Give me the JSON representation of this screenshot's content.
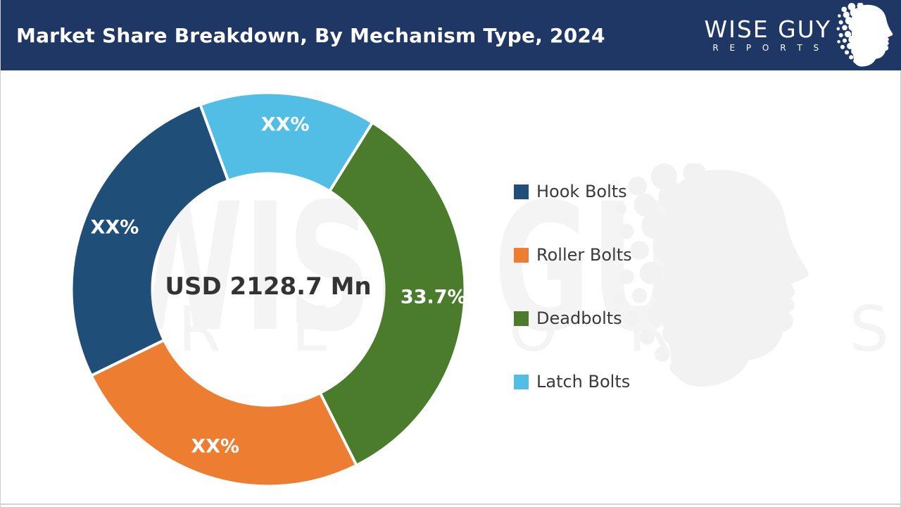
{
  "header": {
    "title": "Market Share Breakdown, By Mechanism Type, 2024",
    "logo": {
      "line1": "WISE GUY",
      "line2": "R E P O R T S"
    }
  },
  "watermark": {
    "line1": "WISE GUY",
    "line2": "R E P O R T S"
  },
  "chart_data": {
    "type": "pie",
    "subtype": "donut",
    "title": "Market Share Breakdown, By Mechanism Type, 2024",
    "center_label": "USD 2128.7 Mn",
    "start_angle_deg": -20.2,
    "unit": "percent",
    "series": [
      {
        "name": "Latch Bolts",
        "value": 14.5,
        "label": "XX%",
        "color": "#53BEE5"
      },
      {
        "name": "Deadbolts",
        "value": 33.7,
        "label": "33.7%",
        "color": "#4A7C2B"
      },
      {
        "name": "Roller Bolts",
        "value": 25.2,
        "label": "XX%",
        "color": "#ED7D31"
      },
      {
        "name": "Hook Bolts",
        "value": 26.6,
        "label": "XX%",
        "color": "#1F4E79"
      }
    ],
    "legend": {
      "position": "right",
      "items": [
        "Hook Bolts",
        "Roller Bolts",
        "Deadbolts",
        "Latch Bolts"
      ]
    }
  },
  "colors": {
    "header_bg": "#1F3765",
    "center_text": "#333333",
    "legend_text": "#3A3A3A",
    "slice_label_text": "#FFFFFF",
    "watermark": "#F4F4F4",
    "separator": "#FFFFFF"
  }
}
